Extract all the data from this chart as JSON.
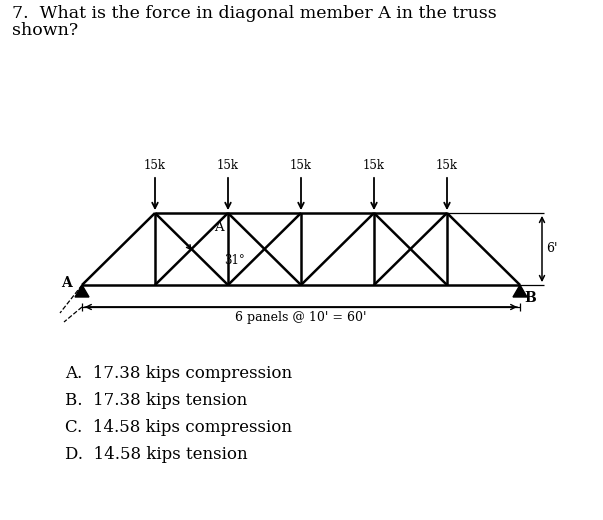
{
  "title_line1": "7.  What is the force in diagonal member A in the truss",
  "title_line2": "shown?",
  "title_fontsize": 12.5,
  "choices": [
    "A.  17.38 kips compression",
    "B.  17.38 kips tension",
    "C.  14.58 kips compression",
    "D.  14.58 kips tension"
  ],
  "choices_fontsize": 12,
  "panel_label": "6 panels @ 10' = 60'",
  "height_label": "6'",
  "angle_label": "31°",
  "member_label": "A",
  "load_label": "15k",
  "num_panels": 6,
  "truss_color": "#000000",
  "bg_color": "#ffffff"
}
